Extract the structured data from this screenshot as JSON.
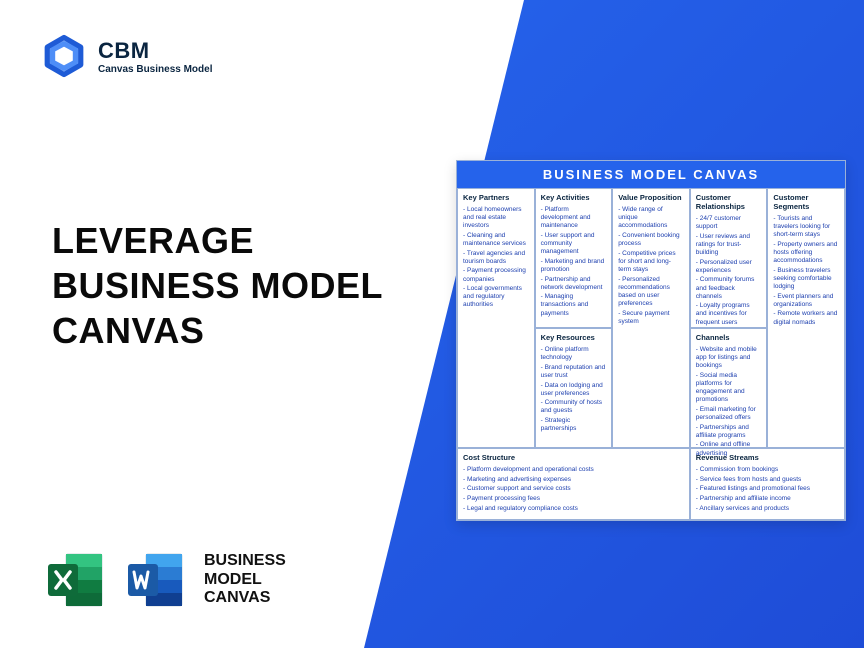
{
  "brand": {
    "name": "CBM",
    "tagline": "Canvas Business Model"
  },
  "hero": {
    "line1": "LEVERAGE",
    "line2": "BUSINESS MODEL",
    "line3": "CANVAS"
  },
  "strip": {
    "line1": "BUSINESS",
    "line2": "MODEL",
    "line3": "CANVAS"
  },
  "colors": {
    "blue": "#2563eb",
    "darkblue": "#1e4bd6",
    "excel_dark": "#0f6b3a",
    "excel_light": "#21a366",
    "word_dark": "#1b5aa6",
    "word_light": "#2b7cd3",
    "text": "#0a0a0a"
  },
  "canvas": {
    "title": "BUSINESS MODEL CANVAS",
    "kp": {
      "heading": "Key Partners",
      "items": [
        "Local homeowners and real estate investors",
        "Cleaning and maintenance services",
        "Travel agencies and tourism boards",
        "Payment processing companies",
        "Local governments and regulatory authorities"
      ]
    },
    "ka": {
      "heading": "Key Activities",
      "items": [
        "Platform development and maintenance",
        "User support and community management",
        "Marketing and brand promotion",
        "Partnership and network development",
        "Managing transactions and payments"
      ]
    },
    "kr": {
      "heading": "Key Resources",
      "items": [
        "Online platform technology",
        "Brand reputation and user trust",
        "Data on lodging and user preferences",
        "Community of hosts and guests",
        "Strategic partnerships"
      ]
    },
    "vp": {
      "heading": "Value Proposition",
      "items": [
        "Wide range of unique accommodations",
        "Convenient booking process",
        "Competitive prices for short and long-term stays",
        "Personalized recommendations based on user preferences",
        "Secure payment system"
      ]
    },
    "cr": {
      "heading": "Customer Relationships",
      "items": [
        "24/7 customer support",
        "User reviews and ratings for trust-building",
        "Personalized user experiences",
        "Community forums and feedback channels",
        "Loyalty programs and incentives for frequent users"
      ]
    },
    "ch": {
      "heading": "Channels",
      "items": [
        "Website and mobile app for listings and bookings",
        "Social media platforms for engagement and promotions",
        "Email marketing for personalized offers",
        "Partnerships and affiliate programs",
        "Online and offline advertising"
      ]
    },
    "cs": {
      "heading": "Customer Segments",
      "items": [
        "Tourists and travelers looking for short-term stays",
        "Property owners and hosts offering accommodations",
        "Business travelers seeking comfortable lodging",
        "Event planners and organizations",
        "Remote workers and digital nomads"
      ]
    },
    "cost": {
      "heading": "Cost Structure",
      "items": [
        "Platform development and operational costs",
        "Marketing and advertising expenses",
        "Customer support and service costs",
        "Payment processing fees",
        "Legal and regulatory compliance costs"
      ]
    },
    "rev": {
      "heading": "Revenue Streams",
      "items": [
        "Commission from bookings",
        "Service fees from hosts and guests",
        "Featured listings and promotional fees",
        "Partnership and affiliate income",
        "Ancillary services and products"
      ]
    }
  }
}
